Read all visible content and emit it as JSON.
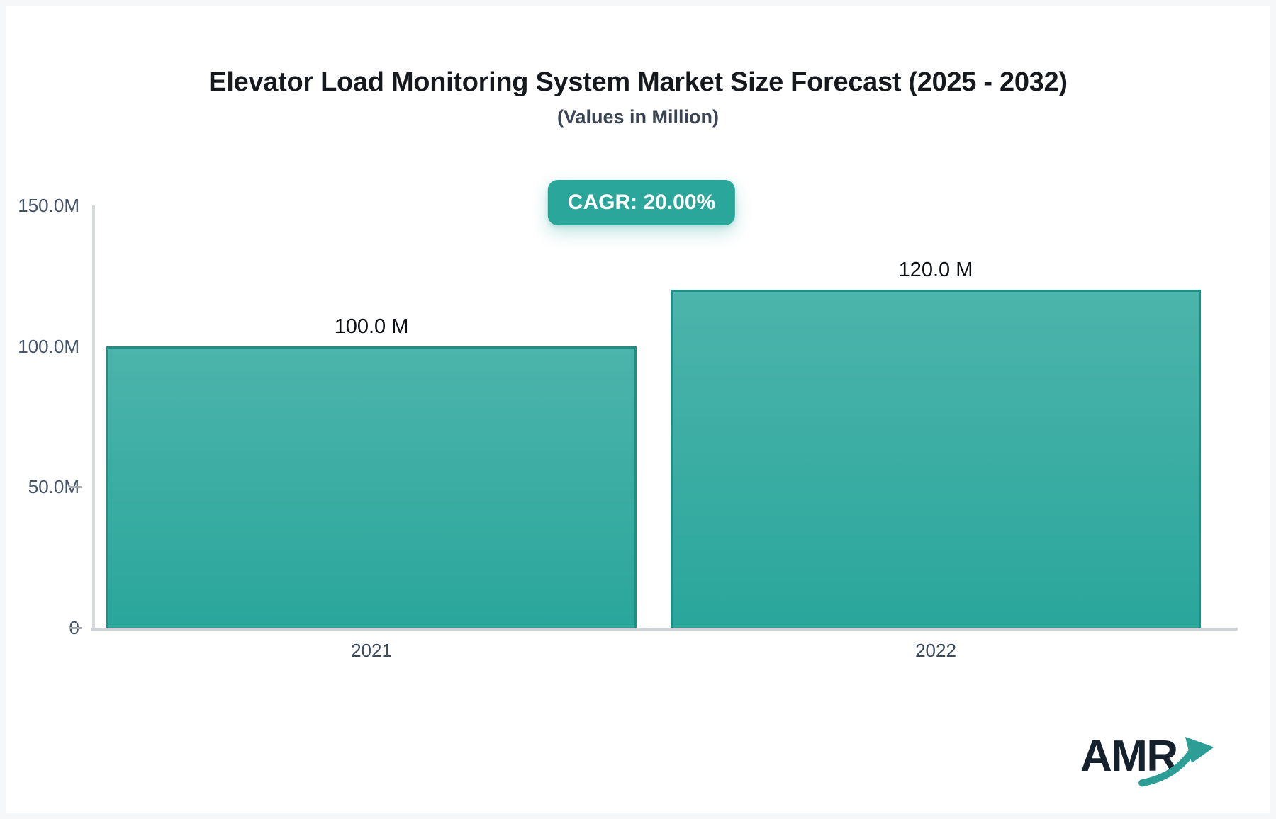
{
  "page": {
    "title": "Elevator Load Monitoring System Market Size Forecast (2025 - 2032)",
    "subtitle": "(Values in Million)",
    "cagr_badge": "CAGR: 20.00%",
    "logo_text": "AMR"
  },
  "icons": {
    "logo_arrow": "growth-arrow-icon"
  },
  "colors": {
    "accent_teal": "#2ba69b",
    "bar_gradient_top": "#4cb4ab",
    "bar_gradient_bottom": "#2aa69b",
    "bar_border": "#1f8e88",
    "axis_line": "#d6d9de",
    "baseline": "#cfd3d8",
    "tick": "#a9aeb5",
    "axis_label_text": "#45546a",
    "category_label_text": "#3b4a5f",
    "value_label_text": "#0c0f12",
    "logo_text_color": "#15222e",
    "logo_arrow_color": "#2c9e96"
  },
  "chart_data": {
    "type": "bar",
    "title": "Elevator Load Monitoring System Market Size Forecast (2025 - 2032)",
    "subtitle": "(Values in Million)",
    "annotation": "CAGR: 20.00%",
    "categories": [
      "2021",
      "2022"
    ],
    "values": [
      100.0,
      120.0
    ],
    "value_labels": [
      "100.0 M",
      "120.0 M"
    ],
    "unit": "Million",
    "xlabel": "",
    "ylabel": "",
    "ylim": [
      0,
      150
    ],
    "y_axis": {
      "max": 150,
      "ticks": [
        {
          "label": "150.0M",
          "value": 150,
          "dash": false
        },
        {
          "label": "100.0M",
          "value": 100,
          "dash": false
        },
        {
          "label": "50.0M",
          "value": 50,
          "dash": true
        },
        {
          "label": "0",
          "value": 0,
          "dash": true
        }
      ]
    },
    "grid": false,
    "legend": false
  }
}
